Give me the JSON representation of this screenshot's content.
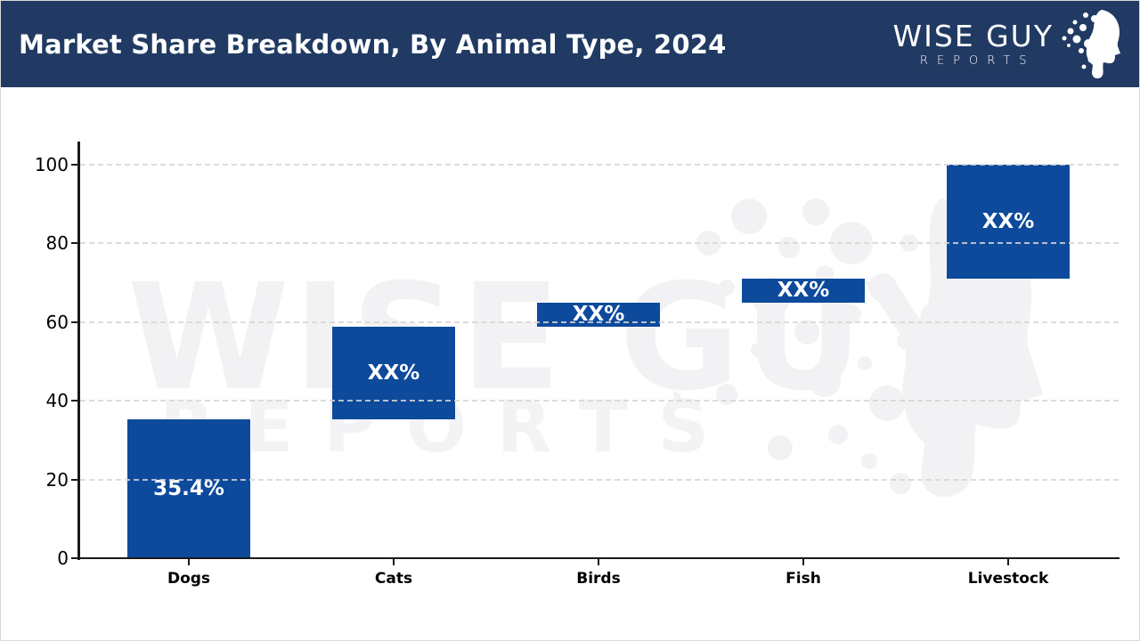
{
  "header": {
    "title": "Market Share Breakdown, By Animal Type, 2024",
    "bg_color": "#203a63",
    "logo": {
      "line1": "WISE GUY",
      "line2": "REPORTS"
    }
  },
  "watermark": {
    "line1": "WISE GUY",
    "line2": "REPORTS"
  },
  "chart_data": {
    "type": "bar",
    "subtype": "waterfall",
    "title": "Market Share Breakdown, By Animal Type, 2024",
    "categories": [
      "Dogs",
      "Cats",
      "Birds",
      "Fish",
      "Livestock"
    ],
    "segments": [
      {
        "category": "Dogs",
        "start": 0,
        "end": 35.4,
        "label": "35.4%"
      },
      {
        "category": "Cats",
        "start": 35.4,
        "end": 58.8,
        "label": "XX%"
      },
      {
        "category": "Birds",
        "start": 58.8,
        "end": 65.0,
        "label": "XX%"
      },
      {
        "category": "Fish",
        "start": 65.0,
        "end": 71.0,
        "label": "XX%"
      },
      {
        "category": "Livestock",
        "start": 71.0,
        "end": 100,
        "label": "XX%"
      }
    ],
    "yticks": [
      0,
      20,
      40,
      60,
      80,
      100
    ],
    "ylim": [
      0,
      105
    ],
    "xlabel": "",
    "ylabel": "",
    "grid": "dashed-horizontal",
    "legend": "none",
    "bar_color": "#0d4a9c"
  }
}
